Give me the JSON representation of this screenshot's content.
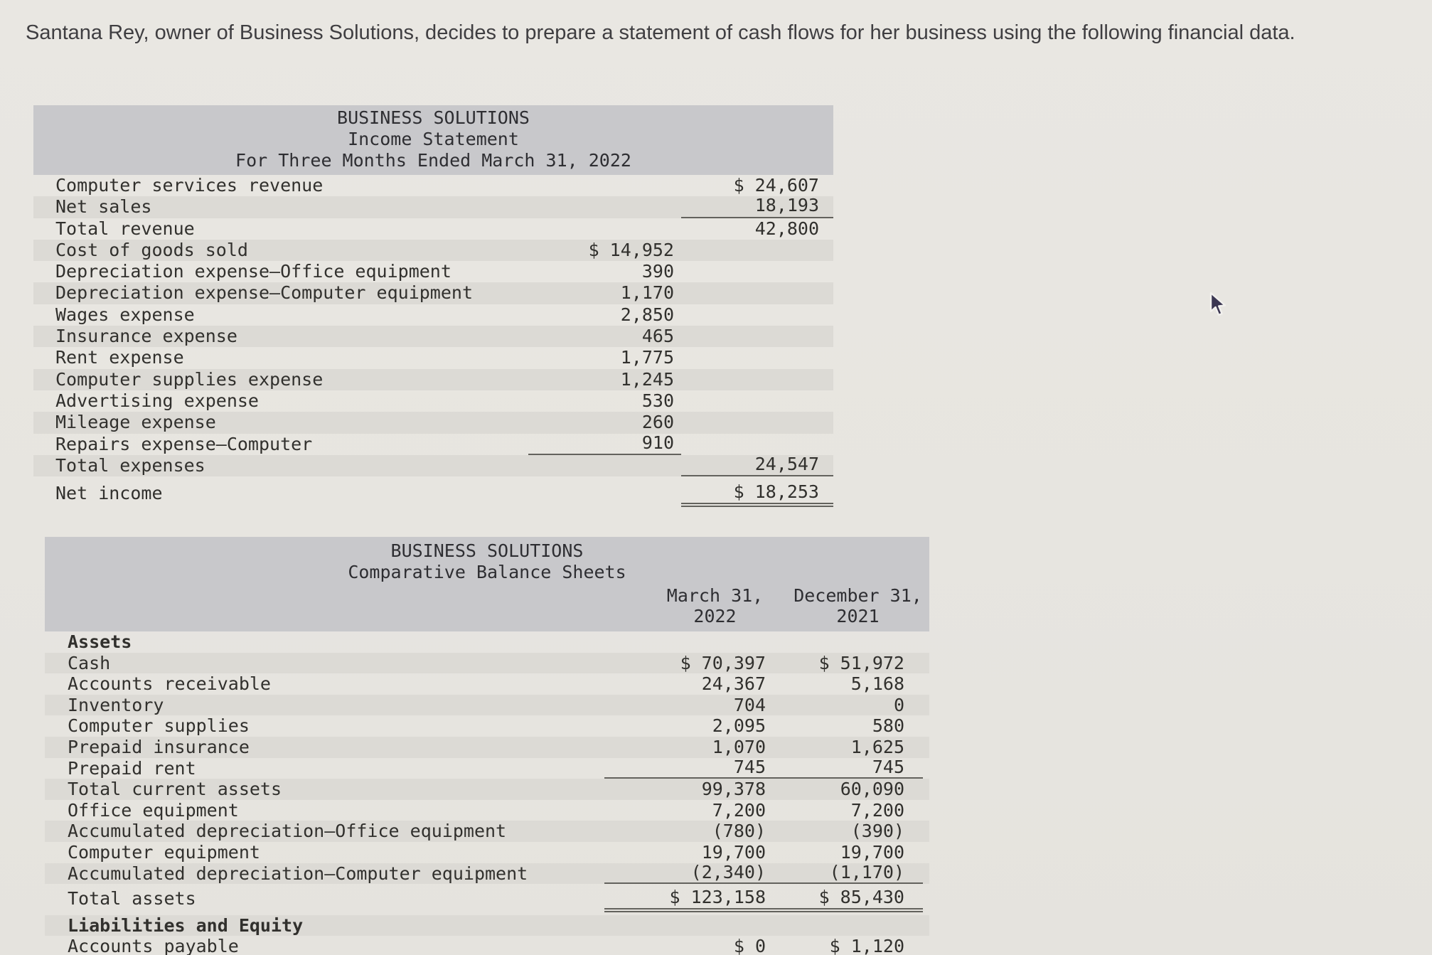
{
  "intro": {
    "text": "Santana Rey, owner of Business Solutions, decides to prepare a statement of cash flows for her business using the following financial data."
  },
  "income_statement": {
    "title_company": "BUSINESS SOLUTIONS",
    "title_report": "Income Statement",
    "title_period": "For Three Months Ended March 31, 2022",
    "rows": [
      {
        "label": "Computer services revenue",
        "mid": "",
        "right": "$ 24,607"
      },
      {
        "label": "Net sales",
        "mid": "",
        "right": "18,193",
        "right_u": true
      },
      {
        "label": "Total revenue",
        "mid": "",
        "right": "42,800"
      },
      {
        "label": "Cost of goods sold",
        "mid": "$ 14,952",
        "right": ""
      },
      {
        "label": "Depreciation expense—Office equipment",
        "mid": "390",
        "right": ""
      },
      {
        "label": "Depreciation expense—Computer equipment",
        "mid": "1,170",
        "right": ""
      },
      {
        "label": "Wages expense",
        "mid": "2,850",
        "right": ""
      },
      {
        "label": "Insurance expense",
        "mid": "465",
        "right": ""
      },
      {
        "label": "Rent expense",
        "mid": "1,775",
        "right": ""
      },
      {
        "label": "Computer supplies expense",
        "mid": "1,245",
        "right": ""
      },
      {
        "label": "Advertising expense",
        "mid": "530",
        "right": ""
      },
      {
        "label": "Mileage expense",
        "mid": "260",
        "right": ""
      },
      {
        "label": "Repairs expense—Computer",
        "mid": "910",
        "right": "",
        "mid_u": true
      },
      {
        "label": "Total expenses",
        "mid": "",
        "right": "24,547",
        "right_u": true
      },
      {
        "label": "Net income",
        "mid": "",
        "right": "$ 18,253",
        "right_du": true,
        "gap": true
      }
    ]
  },
  "balance_sheet": {
    "title_company": "BUSINESS SOLUTIONS",
    "title_report": "Comparative Balance Sheets",
    "columns": [
      {
        "line1": "March 31,",
        "line2": "2022"
      },
      {
        "line1": "December 31,",
        "line2": "2021"
      }
    ],
    "rows": [
      {
        "label": "Assets",
        "bold": true,
        "c1": "",
        "c2": ""
      },
      {
        "label": "Cash",
        "c1": "$ 70,397",
        "c2": "$ 51,972"
      },
      {
        "label": "Accounts receivable",
        "c1": "24,367",
        "c2": "5,168"
      },
      {
        "label": "Inventory",
        "c1": "704",
        "c2": "0"
      },
      {
        "label": "Computer supplies",
        "c1": "2,095",
        "c2": "580"
      },
      {
        "label": "Prepaid insurance",
        "c1": "1,070",
        "c2": "1,625"
      },
      {
        "label": "Prepaid rent",
        "c1": "745",
        "c2": "745",
        "u": true
      },
      {
        "label": "Total current assets",
        "c1": "99,378",
        "c2": "60,090"
      },
      {
        "label": "Office equipment",
        "c1": "7,200",
        "c2": "7,200"
      },
      {
        "label": "Accumulated depreciation—Office equipment",
        "c1": "(780)",
        "c2": "(390)"
      },
      {
        "label": "Computer equipment",
        "c1": "19,700",
        "c2": "19,700"
      },
      {
        "label": "Accumulated depreciation—Computer equipment",
        "c1": "(2,340)",
        "c2": "(1,170)",
        "u": true
      },
      {
        "label": "Total assets",
        "c1": "$ 123,158",
        "c2": "$ 85,430",
        "du": true,
        "gap": true
      },
      {
        "label": "Liabilities and Equity",
        "bold": true,
        "c1": "",
        "c2": ""
      },
      {
        "label": "Accounts payable",
        "c1": "$ 0",
        "c2": "$ 1,120"
      }
    ]
  },
  "cursor": {
    "name": "mouse-pointer"
  }
}
